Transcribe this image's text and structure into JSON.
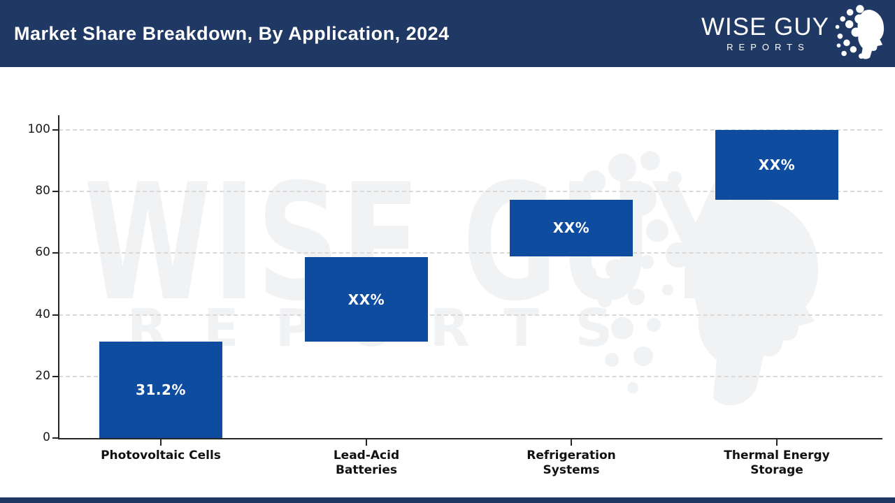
{
  "header": {
    "title": "Market Share Breakdown, By Application, 2024",
    "logo": {
      "line1": "WISE GUY",
      "line2": "REPORTS"
    }
  },
  "watermark": {
    "line1": "WISE GUY",
    "line2": "REPORTS"
  },
  "colors": {
    "header_bg": "#203864",
    "bar": "#0d4c9e",
    "bar_label": "#ffffff",
    "grid": "#d9d9d9",
    "axis": "#262626",
    "tick_label": "#1a1a1a",
    "watermark": "#f1f2f4"
  },
  "chart_data": {
    "type": "bar",
    "subtype": "waterfall",
    "title": "Market Share Breakdown, By Application, 2024",
    "categories": [
      "Photovoltaic Cells",
      "Lead-Acid Batteries",
      "Refrigeration Systems",
      "Thermal Energy Storage"
    ],
    "category_label_lines": [
      [
        "Photovoltaic Cells"
      ],
      [
        "Lead-Acid",
        "Batteries"
      ],
      [
        "Refrigeration",
        "Systems"
      ],
      [
        "Thermal Energy",
        "Storage"
      ]
    ],
    "segments": [
      {
        "category": "Photovoltaic Cells",
        "start": 0,
        "end": 31.2,
        "label": "31.2%"
      },
      {
        "category": "Lead-Acid Batteries",
        "start": 31.2,
        "end": 58.7,
        "label": "XX%"
      },
      {
        "category": "Refrigeration Systems",
        "start": 59.0,
        "end": 77.3,
        "label": "XX%"
      },
      {
        "category": "Thermal Energy Storage",
        "start": 77.4,
        "end": 100,
        "label": "XX%"
      }
    ],
    "yticks": [
      0,
      20,
      40,
      60,
      80,
      100
    ],
    "ylim": [
      0,
      104
    ],
    "xlabel": "",
    "ylabel": "",
    "grid": "dashed-horizontal",
    "legend": "none"
  }
}
